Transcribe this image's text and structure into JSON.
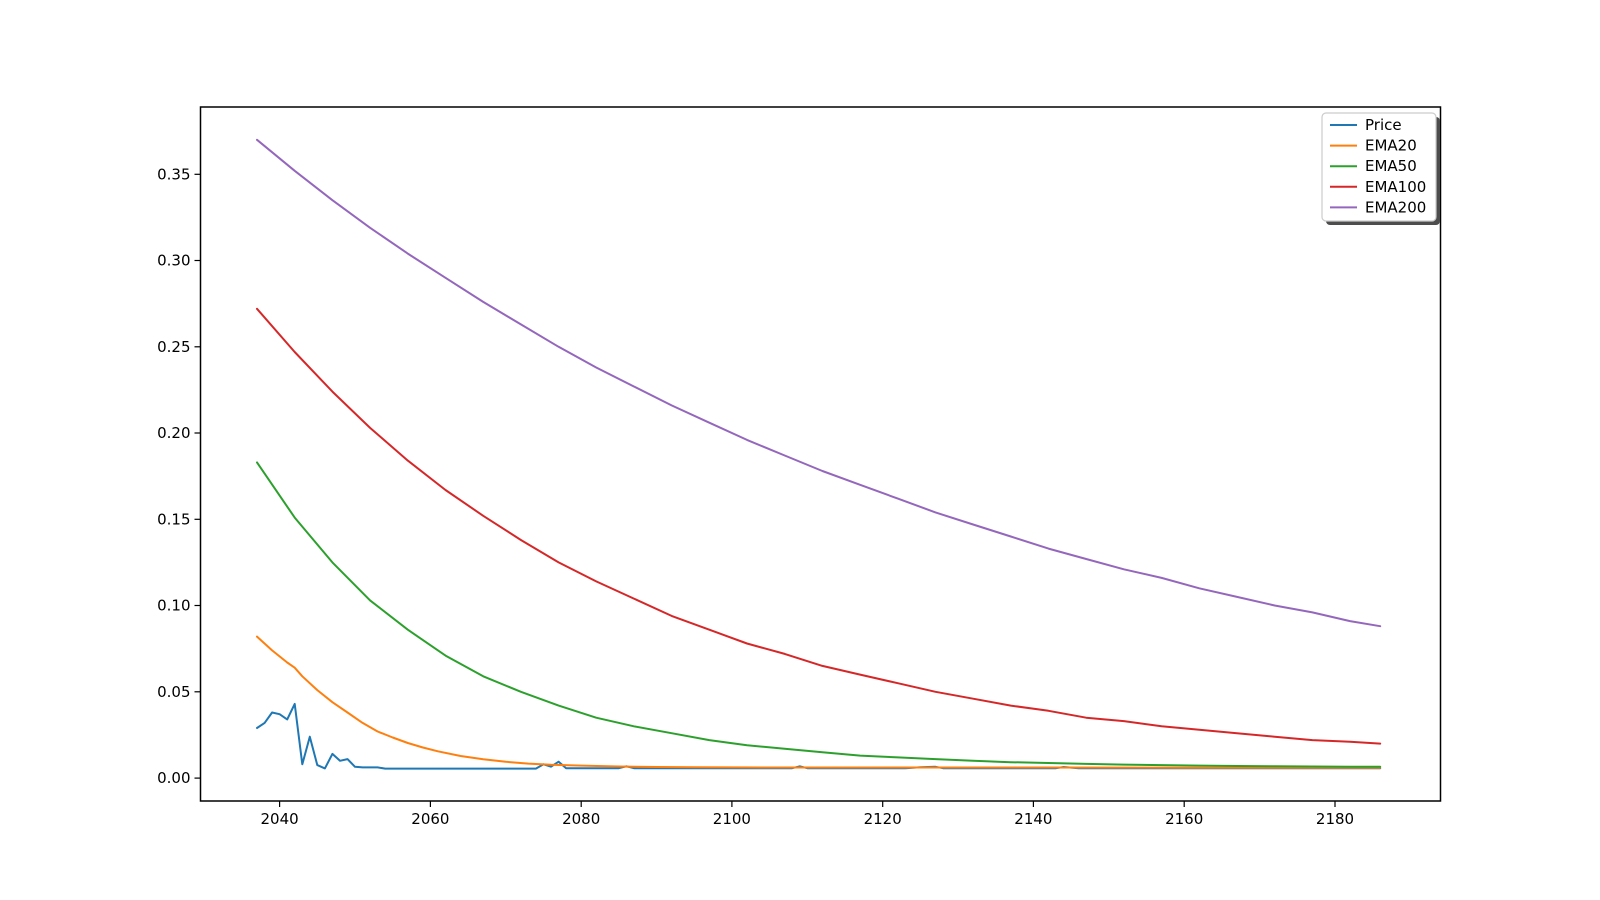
{
  "figure": {
    "background": "#ffffff",
    "plot_background": "#ffffff",
    "spine_color": "#000000"
  },
  "chart_data": {
    "type": "line",
    "title": "",
    "xlabel": "",
    "ylabel": "",
    "grid": false,
    "xlim": [
      2029.5,
      2194.0
    ],
    "ylim": [
      -0.0133,
      0.389
    ],
    "x_ticks": [
      2040,
      2060,
      2080,
      2100,
      2120,
      2140,
      2160,
      2180
    ],
    "x_tick_labels": [
      "2040",
      "2060",
      "2080",
      "2100",
      "2120",
      "2140",
      "2160",
      "2180"
    ],
    "y_ticks": [
      0.0,
      0.05,
      0.1,
      0.15,
      0.2,
      0.25,
      0.3,
      0.35
    ],
    "y_tick_labels": [
      "0.00",
      "0.05",
      "0.10",
      "0.15",
      "0.20",
      "0.25",
      "0.30",
      "0.35"
    ],
    "legend": {
      "position": "upper right",
      "border_color": "#cccccc",
      "shadow_color": "#4d4d4d",
      "background": "#ffffff"
    },
    "series": [
      {
        "label": "Price",
        "color": "#1f77b4",
        "points": [
          [
            2037,
            0.029
          ],
          [
            2038,
            0.032
          ],
          [
            2039,
            0.038
          ],
          [
            2040,
            0.037
          ],
          [
            2041,
            0.034
          ],
          [
            2042,
            0.043
          ],
          [
            2043,
            0.008
          ],
          [
            2044,
            0.024
          ],
          [
            2045,
            0.0075
          ],
          [
            2046,
            0.0056
          ],
          [
            2047,
            0.014
          ],
          [
            2048,
            0.01
          ],
          [
            2049,
            0.011
          ],
          [
            2050,
            0.0065
          ],
          [
            2051,
            0.0062
          ],
          [
            2053,
            0.0062
          ],
          [
            2054,
            0.0055
          ],
          [
            2060,
            0.0055
          ],
          [
            2070,
            0.0055
          ],
          [
            2074,
            0.0055
          ],
          [
            2075,
            0.008
          ],
          [
            2076,
            0.0066
          ],
          [
            2077,
            0.0095
          ],
          [
            2078,
            0.0057
          ],
          [
            2085,
            0.0057
          ],
          [
            2086,
            0.0068
          ],
          [
            2087,
            0.0057
          ],
          [
            2095,
            0.0057
          ],
          [
            2108,
            0.0057
          ],
          [
            2109,
            0.0068
          ],
          [
            2110,
            0.0057
          ],
          [
            2123,
            0.0057
          ],
          [
            2125,
            0.0063
          ],
          [
            2127,
            0.0065
          ],
          [
            2128,
            0.0057
          ],
          [
            2143,
            0.0057
          ],
          [
            2144,
            0.0064
          ],
          [
            2146,
            0.0057
          ],
          [
            2160,
            0.0057
          ],
          [
            2186,
            0.0057
          ]
        ]
      },
      {
        "label": "EMA20",
        "color": "#ff7f0e",
        "points": [
          [
            2037,
            0.082
          ],
          [
            2039,
            0.074
          ],
          [
            2041,
            0.067
          ],
          [
            2042,
            0.064
          ],
          [
            2043,
            0.059
          ],
          [
            2045,
            0.051
          ],
          [
            2047,
            0.044
          ],
          [
            2049,
            0.038
          ],
          [
            2051,
            0.032
          ],
          [
            2053,
            0.027
          ],
          [
            2055,
            0.0235
          ],
          [
            2057,
            0.0203
          ],
          [
            2059,
            0.0177
          ],
          [
            2061,
            0.0155
          ],
          [
            2064,
            0.0128
          ],
          [
            2067,
            0.0109
          ],
          [
            2070,
            0.0094
          ],
          [
            2073,
            0.0084
          ],
          [
            2076,
            0.0077
          ],
          [
            2080,
            0.0072
          ],
          [
            2085,
            0.0067
          ],
          [
            2090,
            0.0064
          ],
          [
            2095,
            0.0063
          ],
          [
            2100,
            0.0062
          ],
          [
            2110,
            0.0061
          ],
          [
            2120,
            0.0061
          ],
          [
            2140,
            0.0061
          ],
          [
            2160,
            0.006
          ],
          [
            2186,
            0.006
          ]
        ]
      },
      {
        "label": "EMA50",
        "color": "#2ca02c",
        "points": [
          [
            2037,
            0.183
          ],
          [
            2042,
            0.151
          ],
          [
            2047,
            0.125
          ],
          [
            2052,
            0.103
          ],
          [
            2057,
            0.086
          ],
          [
            2062,
            0.071
          ],
          [
            2067,
            0.059
          ],
          [
            2072,
            0.05
          ],
          [
            2077,
            0.042
          ],
          [
            2082,
            0.035
          ],
          [
            2087,
            0.03
          ],
          [
            2092,
            0.026
          ],
          [
            2097,
            0.022
          ],
          [
            2102,
            0.019
          ],
          [
            2107,
            0.017
          ],
          [
            2112,
            0.015
          ],
          [
            2117,
            0.013
          ],
          [
            2122,
            0.012
          ],
          [
            2127,
            0.011
          ],
          [
            2132,
            0.01
          ],
          [
            2137,
            0.0092
          ],
          [
            2142,
            0.0087
          ],
          [
            2147,
            0.0082
          ],
          [
            2152,
            0.0078
          ],
          [
            2157,
            0.0075
          ],
          [
            2162,
            0.0072
          ],
          [
            2167,
            0.007
          ],
          [
            2172,
            0.0068
          ],
          [
            2177,
            0.0067
          ],
          [
            2182,
            0.0066
          ],
          [
            2186,
            0.0065
          ]
        ]
      },
      {
        "label": "EMA100",
        "color": "#d62728",
        "points": [
          [
            2037,
            0.272
          ],
          [
            2042,
            0.247
          ],
          [
            2047,
            0.224
          ],
          [
            2052,
            0.203
          ],
          [
            2057,
            0.184
          ],
          [
            2062,
            0.167
          ],
          [
            2067,
            0.152
          ],
          [
            2072,
            0.138
          ],
          [
            2077,
            0.125
          ],
          [
            2082,
            0.114
          ],
          [
            2087,
            0.104
          ],
          [
            2092,
            0.094
          ],
          [
            2097,
            0.086
          ],
          [
            2102,
            0.078
          ],
          [
            2107,
            0.072
          ],
          [
            2112,
            0.065
          ],
          [
            2117,
            0.06
          ],
          [
            2122,
            0.055
          ],
          [
            2127,
            0.05
          ],
          [
            2132,
            0.046
          ],
          [
            2137,
            0.042
          ],
          [
            2142,
            0.039
          ],
          [
            2147,
            0.035
          ],
          [
            2152,
            0.033
          ],
          [
            2157,
            0.03
          ],
          [
            2162,
            0.028
          ],
          [
            2167,
            0.026
          ],
          [
            2172,
            0.024
          ],
          [
            2177,
            0.022
          ],
          [
            2182,
            0.021
          ],
          [
            2186,
            0.02
          ]
        ]
      },
      {
        "label": "EMA200",
        "color": "#9467bd",
        "points": [
          [
            2037,
            0.37
          ],
          [
            2042,
            0.352
          ],
          [
            2047,
            0.335
          ],
          [
            2052,
            0.319
          ],
          [
            2057,
            0.304
          ],
          [
            2062,
            0.29
          ],
          [
            2067,
            0.276
          ],
          [
            2072,
            0.263
          ],
          [
            2077,
            0.25
          ],
          [
            2082,
            0.238
          ],
          [
            2087,
            0.227
          ],
          [
            2092,
            0.216
          ],
          [
            2097,
            0.206
          ],
          [
            2102,
            0.196
          ],
          [
            2107,
            0.187
          ],
          [
            2112,
            0.178
          ],
          [
            2117,
            0.17
          ],
          [
            2122,
            0.162
          ],
          [
            2127,
            0.154
          ],
          [
            2132,
            0.147
          ],
          [
            2137,
            0.14
          ],
          [
            2142,
            0.133
          ],
          [
            2147,
            0.127
          ],
          [
            2152,
            0.121
          ],
          [
            2157,
            0.116
          ],
          [
            2162,
            0.11
          ],
          [
            2167,
            0.105
          ],
          [
            2172,
            0.1
          ],
          [
            2177,
            0.096
          ],
          [
            2182,
            0.091
          ],
          [
            2186,
            0.088
          ]
        ]
      }
    ]
  }
}
